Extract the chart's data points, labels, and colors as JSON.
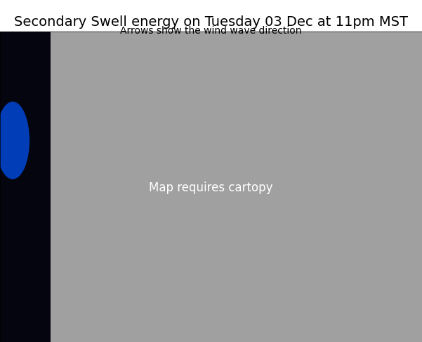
{
  "title": "Secondary Swell energy on Tuesday 03 Dec at 11pm MST",
  "subtitle": "Arrows show the wind wave direction",
  "title_fontsize": 14,
  "subtitle_fontsize": 10,
  "figsize": [
    6.01,
    4.89
  ],
  "dpi": 100,
  "background_color": "#ffffff",
  "map_extent": [
    -135,
    -85,
    22,
    55
  ],
  "ocean_color": "#050510",
  "land_color": "#aaaaaa",
  "highlight_blue": "#0044ff",
  "border_color": "#000000",
  "border_lw": 0.5
}
